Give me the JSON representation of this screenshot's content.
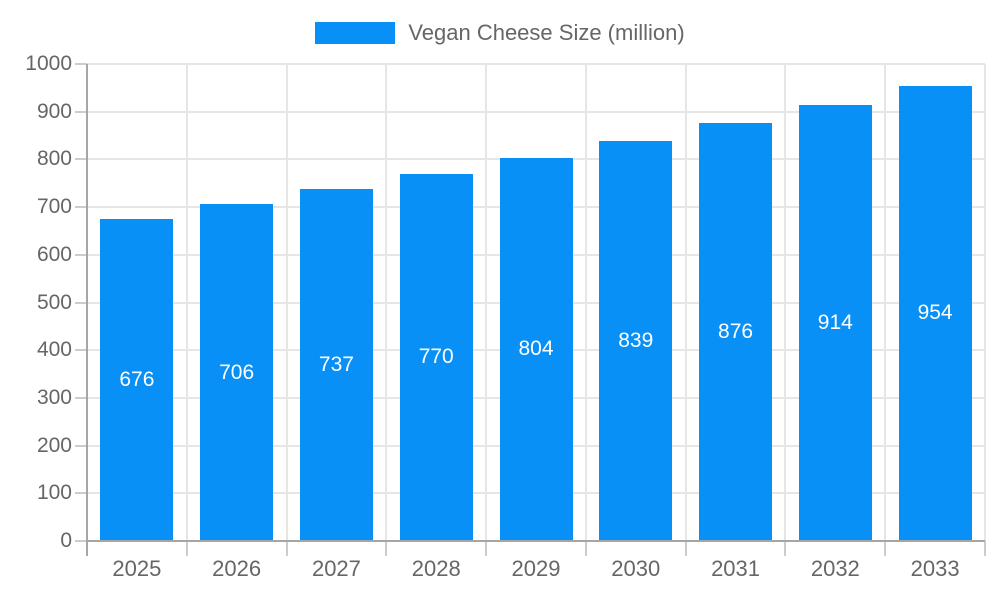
{
  "chart_data": {
    "type": "bar",
    "title": "Vegan Cheese Size (million)",
    "legend": {
      "position": "top",
      "label": "Vegan Cheese Size (million)"
    },
    "categories": [
      "2025",
      "2026",
      "2027",
      "2028",
      "2029",
      "2030",
      "2031",
      "2032",
      "2033"
    ],
    "values": [
      676,
      706,
      737,
      770,
      804,
      839,
      876,
      914,
      954
    ],
    "xlabel": "",
    "ylabel": "",
    "ylim": [
      0,
      1000
    ],
    "ytick_step": 100,
    "ytick_labels": [
      "0",
      "100",
      "200",
      "300",
      "400",
      "500",
      "600",
      "700",
      "800",
      "900",
      "1000"
    ],
    "grid": true,
    "bar_labels_visible": true,
    "colors": {
      "bar": "#0990f6",
      "bar_label": "#ffffff",
      "axis_text": "#666666",
      "gridline": "#e6e6e6",
      "axis_line": "#a6a6a6",
      "tick": "#cccccc",
      "background": "#ffffff"
    }
  }
}
